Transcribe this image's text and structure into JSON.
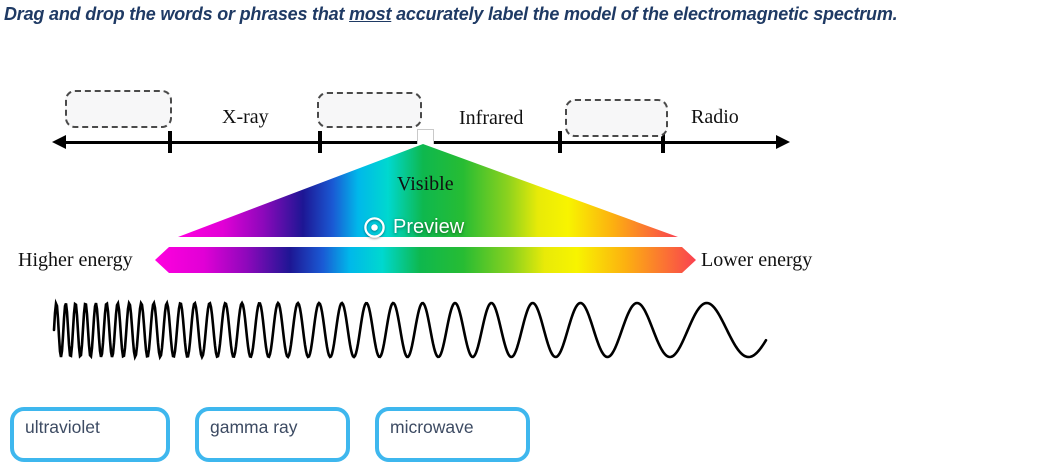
{
  "instruction": {
    "prefix": "Drag and drop the words or phrases that ",
    "underlined": "most",
    "suffix": " accurately label the model of the electromagnetic spectrum."
  },
  "colors": {
    "header_color": "#1f3a64",
    "chip_border": "#3eb7ee",
    "chip_text": "#3d4b63"
  },
  "diagram": {
    "band_labels": [
      {
        "label": "X-ray"
      },
      {
        "label": "Infrared"
      },
      {
        "label": "Radio"
      }
    ],
    "visible_label": "Visible",
    "higher_energy_label": "Higher energy",
    "lower_energy_label": "Lower energy",
    "drop_zones": [
      {
        "id": "zone-1",
        "value": ""
      },
      {
        "id": "zone-2",
        "value": ""
      },
      {
        "id": "zone-3",
        "value": ""
      }
    ],
    "rainbow_stops": [
      "#ff00de 0%",
      "#e100d6 9%",
      "#8d08bb 17%",
      "#1d1694 25%",
      "#1a5ad4 31%",
      "#00b8ea 36%",
      "#00d8cf 42%",
      "#0eb84e 49%",
      "#27bc33 57%",
      "#8cd21e 66%",
      "#e8ea08 72%",
      "#f8f400 78%",
      "#fcb010 87%",
      "#fa4150 100%"
    ]
  },
  "preview": {
    "label": "Preview"
  },
  "word_bank": [
    {
      "label": "ultraviolet"
    },
    {
      "label": "gamma ray"
    },
    {
      "label": "microwave"
    }
  ]
}
